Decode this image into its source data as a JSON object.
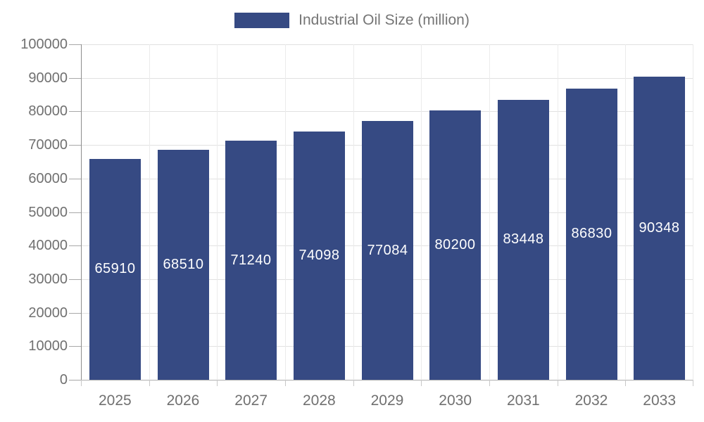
{
  "chart_data": {
    "type": "bar",
    "title": "Industrial Oil Size (million)",
    "categories": [
      "2025",
      "2026",
      "2027",
      "2028",
      "2029",
      "2030",
      "2031",
      "2032",
      "2033"
    ],
    "values": [
      65910,
      68510,
      71240,
      74098,
      77084,
      80200,
      83448,
      86830,
      90348
    ],
    "value_labels": [
      "65910",
      "68510",
      "71240",
      "74098",
      "77084",
      "80200",
      "83448",
      "86830",
      "90348"
    ],
    "xlabel": "",
    "ylabel": "",
    "ylim": [
      0,
      100000
    ],
    "ytick_step": 10000,
    "ytick_labels": [
      "0",
      "10000",
      "20000",
      "30000",
      "40000",
      "50000",
      "60000",
      "70000",
      "80000",
      "90000",
      "100000"
    ],
    "grid": true,
    "legend_position": "top-center",
    "value_labels_shown": true
  },
  "legend": {
    "label": "Industrial Oil Size (million)"
  },
  "colors": {
    "bar": "#364a83",
    "bar_value_text": "#ffffff",
    "grid_horizontal": "#e1e1e1",
    "grid_vertical": "#ebebeb",
    "y_axis_line": "#8c8c8c",
    "x_axis_line": "#b0b0b0",
    "tick_mark": "#a8a8a8",
    "below_axis_tick": "#c8c8c8",
    "axis_text": "#707070",
    "legend_text": "#757575",
    "background": "#ffffff"
  }
}
